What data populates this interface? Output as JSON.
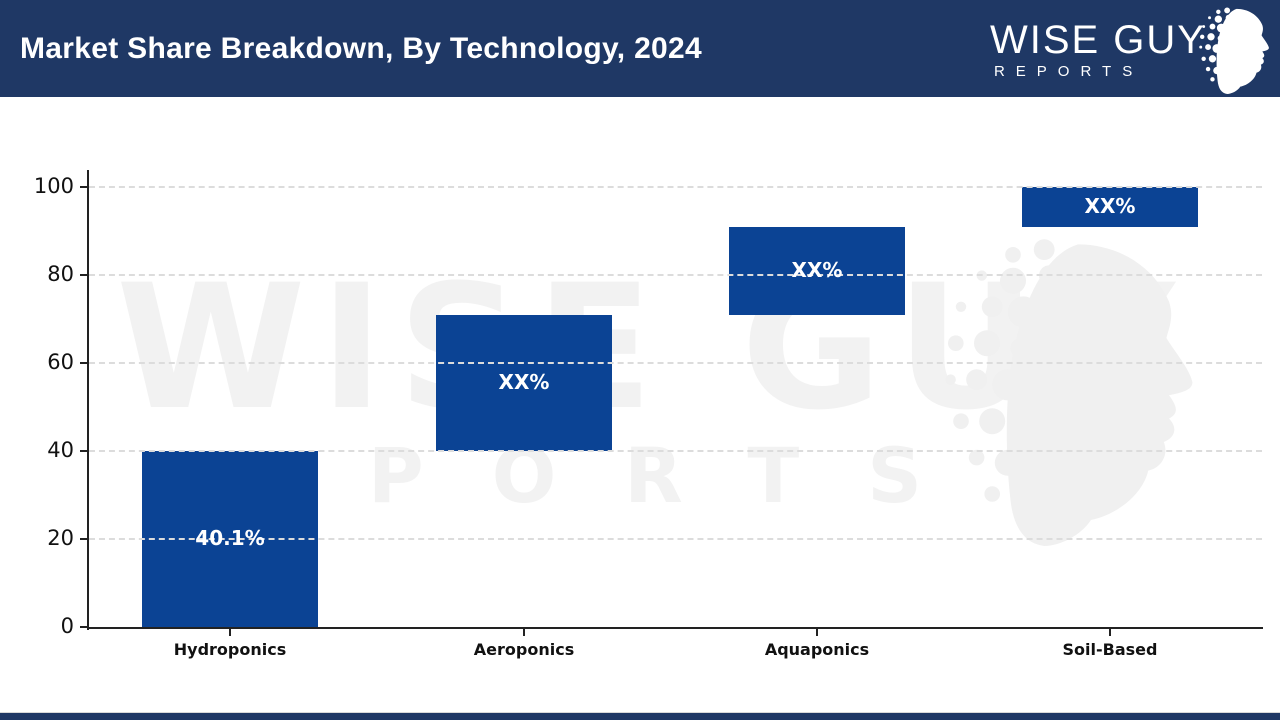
{
  "header": {
    "title": "Market Share Breakdown, By Technology, 2024",
    "logo": {
      "name": "WISE GUY",
      "sub": "REPORTS"
    }
  },
  "watermark": {
    "line1": "WISE GUY",
    "line2": "PORTS"
  },
  "colors": {
    "header_bg": "#1f3865",
    "bar": "#0b4394",
    "grid": "#dcdcdc",
    "axis": "#222222",
    "watermark": "#f2f2f2",
    "value_label": "#ffffff"
  },
  "chart_data": {
    "type": "bar",
    "subtype": "floating-waterfall",
    "title": "Market Share Breakdown, By Technology, 2024",
    "categories": [
      "Hydroponics",
      "Aeroponics",
      "Aquaponics",
      "Soil-Based"
    ],
    "segments": [
      {
        "category": "Hydroponics",
        "start": 0,
        "end": 40.1,
        "label": "40.1%"
      },
      {
        "category": "Aeroponics",
        "start": 40.1,
        "end": 71,
        "label": "XX%"
      },
      {
        "category": "Aquaponics",
        "start": 71,
        "end": 91,
        "label": "XX%"
      },
      {
        "category": "Soil-Based",
        "start": 91,
        "end": 100,
        "label": "XX%"
      }
    ],
    "ylim": [
      0,
      100
    ],
    "yticks": [
      0,
      20,
      40,
      60,
      80,
      100
    ],
    "xlabel": "",
    "ylabel": "",
    "grid": "horizontal-dashed-over-bars",
    "legend": "none",
    "bar_color": "#0b4394",
    "value_label_color": "#ffffff"
  }
}
